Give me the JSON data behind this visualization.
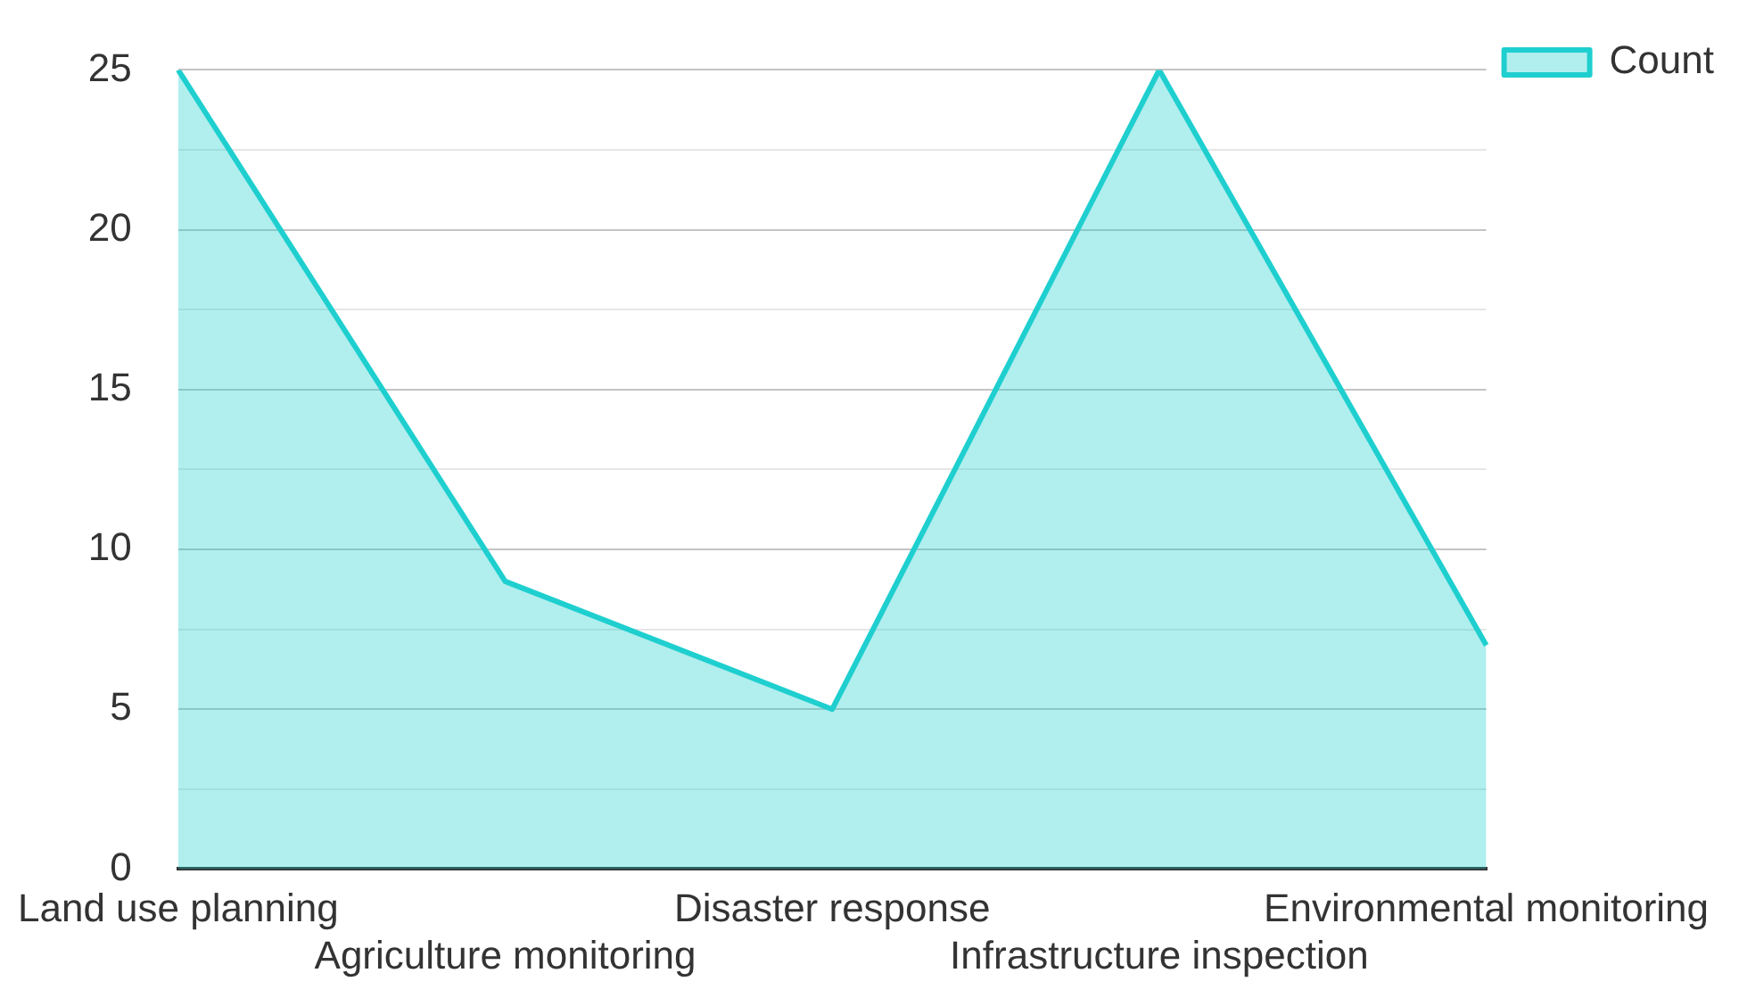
{
  "chart_data": {
    "type": "area",
    "categories": [
      "Land use planning",
      "Agriculture monitoring",
      "Disaster response",
      "Infrastructure inspection",
      "Environmental monitoring"
    ],
    "series": [
      {
        "name": "Count",
        "color": "#1fcfcf",
        "values": [
          25,
          9,
          5,
          25,
          7
        ]
      }
    ],
    "ylim": [
      0,
      25
    ],
    "yticks": [
      0,
      {
        "value": 2.5,
        "label": null
      },
      5,
      {
        "value": 7.5,
        "label": null
      },
      10,
      {
        "value": 12.5,
        "label": null
      },
      15,
      {
        "value": 17.5,
        "label": null
      },
      20,
      {
        "value": 22.5,
        "label": null
      },
      25
    ],
    "grid": "y",
    "legend": "top right",
    "marker": "none",
    "line_style": "solid"
  }
}
